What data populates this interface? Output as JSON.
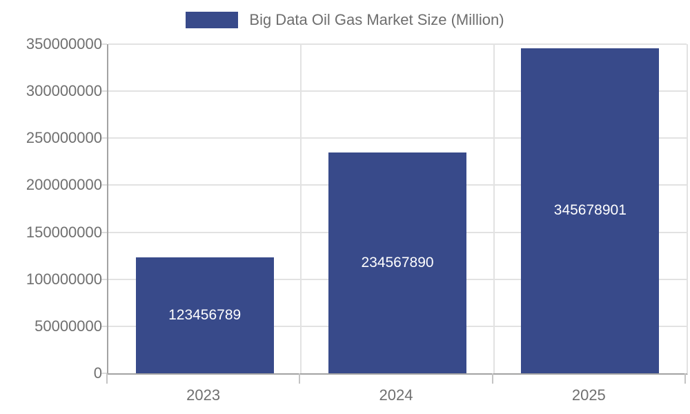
{
  "chart_data": {
    "type": "bar",
    "title": "Big Data Oil Gas Market Size (Million)",
    "legend": {
      "label": "Big Data Oil Gas Market Size (Million)",
      "position": "top-center"
    },
    "categories": [
      "2023",
      "2024",
      "2025"
    ],
    "values": [
      123456789,
      234567890,
      345678901
    ],
    "bar_labels": [
      "123456789",
      "234567890",
      "345678901"
    ],
    "xlabel": "",
    "ylabel": "",
    "ylim": [
      0,
      350000000
    ],
    "y_ticks": [
      0,
      50000000,
      100000000,
      150000000,
      200000000,
      250000000,
      300000000,
      350000000
    ],
    "y_tick_labels": [
      "0",
      "50000000",
      "100000000",
      "150000000",
      "200000000",
      "250000000",
      "300000000",
      "350000000"
    ],
    "grid": true,
    "legend_swatch_color": "#384A8A",
    "bar_color": "#384A8A",
    "bar_label_color": "#ffffff"
  },
  "colors": {
    "background": "#ffffff",
    "axis_line": "#a3a3a3",
    "gridline": "#e2e2e2",
    "tick_text": "#6f6f6f",
    "legend_text": "#6e6e6e"
  }
}
